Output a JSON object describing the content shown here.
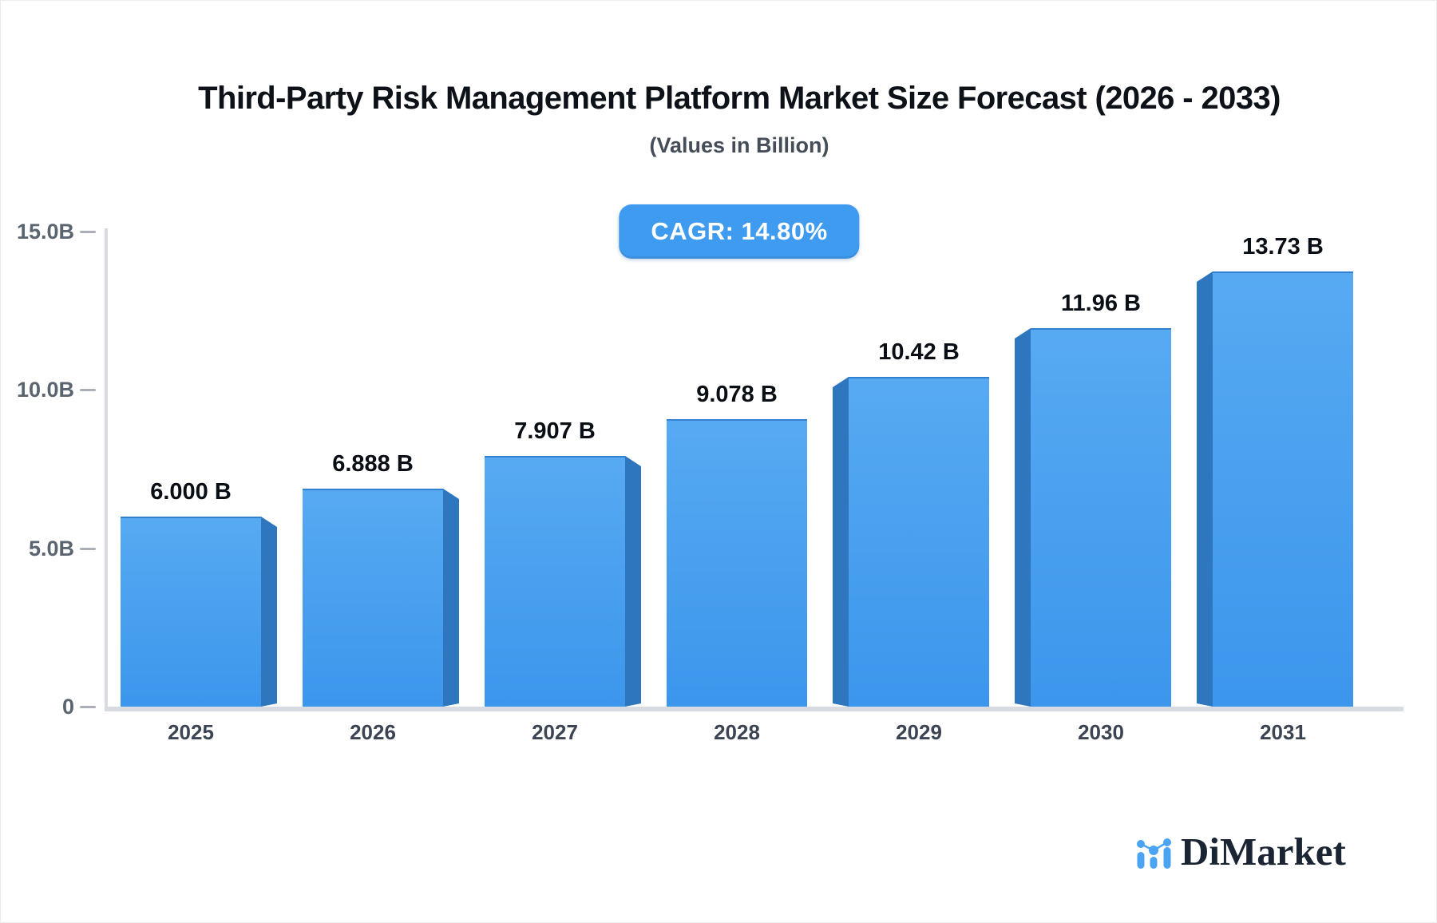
{
  "title": "Third-Party Risk Management Platform Market Size Forecast (2026 - 2033)",
  "subtitle": "(Values in Billion)",
  "badge": {
    "label": "CAGR: 14.80%"
  },
  "brand": {
    "name": "DiMarket",
    "icon": "bar-line-chart-icon"
  },
  "colors": {
    "badge_bg": "#3f9bf0",
    "bar_top": "#57aaf2",
    "bar_bottom": "#3c96ec",
    "bar_top_edge": "#3181d0",
    "bar_side": "#2e76bd",
    "axis": "#d8dce2",
    "tick": "#a9b0ba",
    "logo_blue": "#4aa3f3",
    "logo_navy": "#1a2433"
  },
  "chart_data": {
    "type": "bar",
    "title": "Third-Party Risk Management Platform Market Size Forecast (2026 - 2033)",
    "subtitle": "(Values in Billion)",
    "annotation": "CAGR: 14.80%",
    "categories": [
      "2025",
      "2026",
      "2027",
      "2028",
      "2029",
      "2030",
      "2031"
    ],
    "values": [
      6.0,
      6.888,
      7.907,
      9.078,
      10.42,
      11.96,
      13.73
    ],
    "bar_labels": [
      "6.000 B",
      "6.888 B",
      "7.907 B",
      "9.078 B",
      "10.42 B",
      "11.96 B",
      "13.73 B"
    ],
    "xlabel": "",
    "ylabel": "",
    "ylim": [
      0,
      15
    ],
    "yticks": [
      {
        "value": 15,
        "label": "15.0B"
      },
      {
        "value": 10,
        "label": "10.0B"
      },
      {
        "value": 5,
        "label": "5.0B"
      },
      {
        "value": 0,
        "label": "0"
      }
    ],
    "grid": false,
    "legend": false
  }
}
